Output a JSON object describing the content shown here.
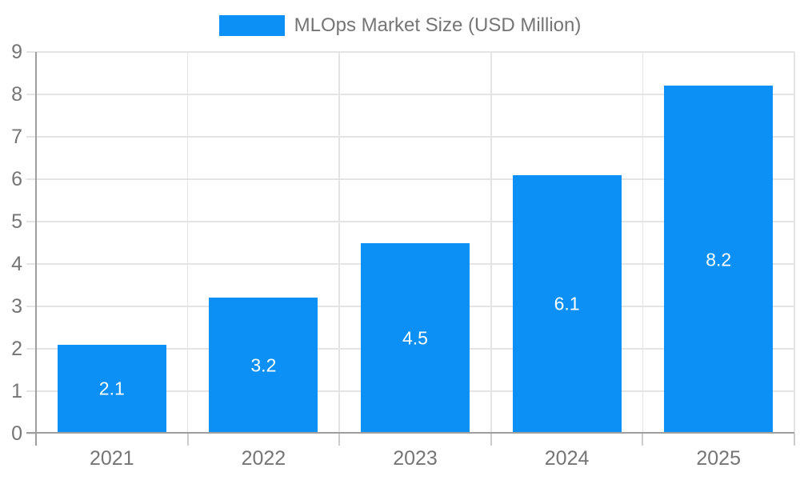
{
  "legend": {
    "label": "MLOps Market Size (USD Million)",
    "swatch_icon": "series-color-swatch"
  },
  "chart_data": {
    "type": "bar",
    "title": "MLOps Market Size (USD Million)",
    "categories": [
      "2021",
      "2022",
      "2023",
      "2024",
      "2025"
    ],
    "values": [
      2.1,
      3.2,
      4.5,
      6.1,
      8.2
    ],
    "value_labels": [
      "2.1",
      "3.2",
      "4.5",
      "6.1",
      "8.2"
    ],
    "xlabel": "",
    "ylabel": "",
    "ylim": [
      0,
      9
    ],
    "yticks": [
      0,
      1,
      2,
      3,
      4,
      5,
      6,
      7,
      8,
      9
    ],
    "grid": true,
    "legend_position": "top-center",
    "colors": {
      "bar": "#0d90f5",
      "value_text": "#ffffff",
      "axis_text": "#757575",
      "gridline": "#e4e4e4",
      "axis_line": "#9e9e9e",
      "tick": "#cccccc",
      "background": "#ffffff"
    }
  }
}
